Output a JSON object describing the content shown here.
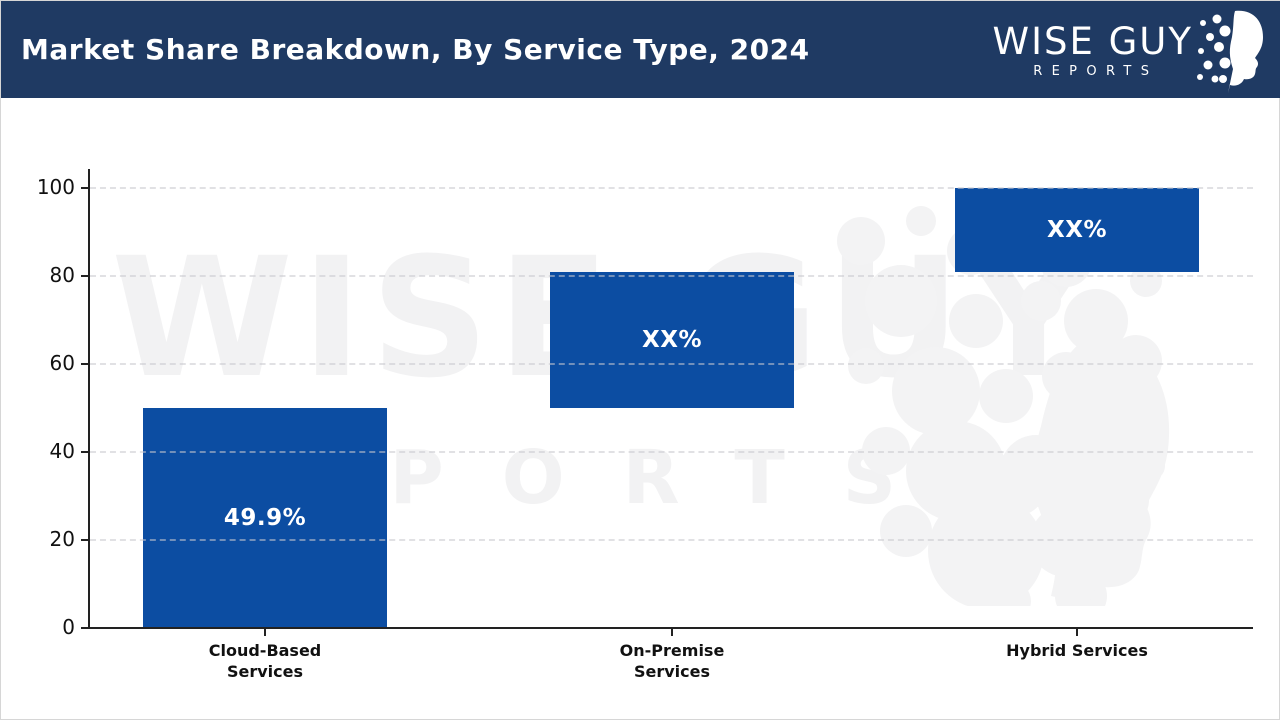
{
  "header": {
    "title": "Market Share Breakdown, By Service Type, 2024",
    "bg_color": "#1f3a63",
    "logo": {
      "line1": "WISE GUY",
      "line2": "REPORTS"
    }
  },
  "watermark": {
    "line1": "WISE GUY",
    "line2": "REPORTS"
  },
  "chart_data": {
    "type": "bar",
    "subtype": "waterfall-segments",
    "title": "Market Share Breakdown, By Service Type, 2024",
    "categories": [
      "Cloud-Based\nServices",
      "On-Premise\nServices",
      "Hybrid Services"
    ],
    "segments": [
      {
        "category": "Cloud-Based Services",
        "start": 0,
        "end": 49.9,
        "label": "49.9%"
      },
      {
        "category": "On-Premise Services",
        "start": 50,
        "end": 81,
        "label": "XX%"
      },
      {
        "category": "Hybrid Services",
        "start": 81,
        "end": 100,
        "label": "XX%"
      }
    ],
    "xlabel": "",
    "ylabel": "",
    "ylim": [
      0,
      100
    ],
    "yticks": [
      0,
      20,
      40,
      60,
      80,
      100
    ],
    "grid": "horizontal-dashed",
    "legend": "none",
    "bar_color": "#0c4da2"
  }
}
